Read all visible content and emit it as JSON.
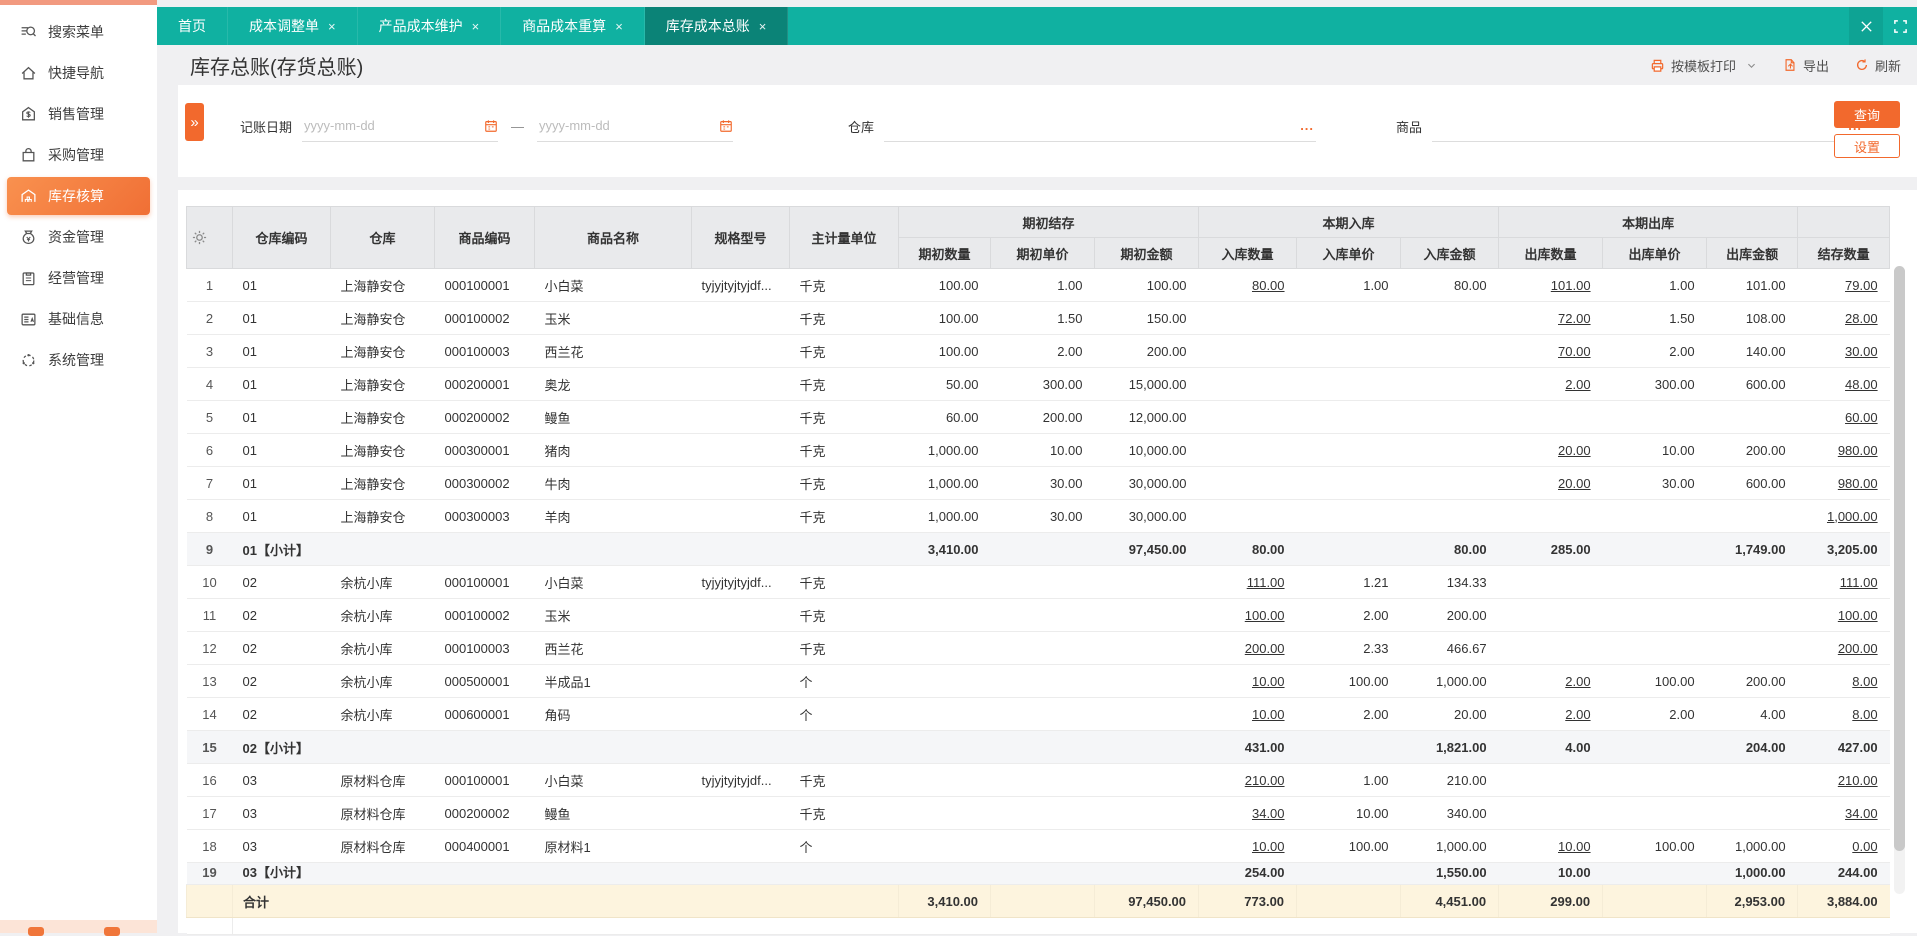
{
  "colors": {
    "teal": "#10b1a1",
    "teal_active_tab": "#0b8377",
    "accent_orange": "#f2692d",
    "sidebar_active_gradient_from": "#f9914f",
    "sidebar_active_gradient_to": "#f06f35",
    "total_row_bg": "#fdf4de",
    "header_bg": "#e9eaec"
  },
  "tabs": [
    {
      "label": "首页",
      "closable": false,
      "active": false
    },
    {
      "label": "成本调整单",
      "closable": true,
      "active": false
    },
    {
      "label": "产品成本维护",
      "closable": true,
      "active": false
    },
    {
      "label": "商品成本重算",
      "closable": true,
      "active": false
    },
    {
      "label": "库存成本总账",
      "closable": true,
      "active": true
    }
  ],
  "window_controls": [
    {
      "icon": "window-close-icon",
      "shade": true
    },
    {
      "icon": "window-restore-icon",
      "shade": false
    }
  ],
  "sidebar": {
    "items": [
      {
        "label": "搜索菜单",
        "icon": "search-menu-icon",
        "active": false
      },
      {
        "label": "快捷导航",
        "icon": "home-icon",
        "active": false
      },
      {
        "label": "销售管理",
        "icon": "sales-icon",
        "active": false
      },
      {
        "label": "采购管理",
        "icon": "procurement-icon",
        "active": false
      },
      {
        "label": "库存核算",
        "icon": "inventory-icon",
        "active": true
      },
      {
        "label": "资金管理",
        "icon": "funds-icon",
        "active": false
      },
      {
        "label": "经营管理",
        "icon": "operations-icon",
        "active": false
      },
      {
        "label": "基础信息",
        "icon": "base-info-icon",
        "active": false
      },
      {
        "label": "系统管理",
        "icon": "system-icon",
        "active": false
      }
    ]
  },
  "page": {
    "title": "库存总账(存货总账)"
  },
  "toolbar": {
    "print": "按模板打印",
    "export": "导出",
    "refresh": "刷新"
  },
  "filters": {
    "date_label": "记账日期",
    "date_placeholder": "yyyy-mm-dd",
    "separator": "—",
    "warehouse_label": "仓库",
    "product_label": "商品",
    "more": "...",
    "query": "查询",
    "settings": "设置"
  },
  "table": {
    "left_headers": [
      "仓库编码",
      "仓库",
      "商品编码",
      "商品名称",
      "规格型号",
      "主计量单位"
    ],
    "groups": [
      "期初结存",
      "本期入库",
      "本期出库"
    ],
    "numeric_headers": [
      "期初数量",
      "期初单价",
      "期初金额",
      "入库数量",
      "入库单价",
      "入库金额",
      "出库数量",
      "出库单价",
      "出库金额"
    ],
    "balance_header": "结存数量",
    "rows": [
      {
        "no": "1",
        "type": "data",
        "cells": [
          "01",
          "上海静安仓",
          "000100001",
          "小白菜",
          "tyjyjtyjtyjdf...",
          "千克"
        ],
        "values": [
          "100.00",
          "1.00",
          "100.00",
          "80.00",
          "1.00",
          "80.00",
          "101.00",
          "1.00",
          "101.00",
          "79.00"
        ],
        "links": [
          3,
          6,
          9
        ]
      },
      {
        "no": "2",
        "type": "data",
        "cells": [
          "01",
          "上海静安仓",
          "000100002",
          "玉米",
          "",
          "千克"
        ],
        "values": [
          "100.00",
          "1.50",
          "150.00",
          "",
          "",
          "",
          "72.00",
          "1.50",
          "108.00",
          "28.00"
        ],
        "links": [
          6,
          9
        ]
      },
      {
        "no": "3",
        "type": "data",
        "cells": [
          "01",
          "上海静安仓",
          "000100003",
          "西兰花",
          "",
          "千克"
        ],
        "values": [
          "100.00",
          "2.00",
          "200.00",
          "",
          "",
          "",
          "70.00",
          "2.00",
          "140.00",
          "30.00"
        ],
        "links": [
          6,
          9
        ]
      },
      {
        "no": "4",
        "type": "data",
        "cells": [
          "01",
          "上海静安仓",
          "000200001",
          "奥龙",
          "",
          "千克"
        ],
        "values": [
          "50.00",
          "300.00",
          "15,000.00",
          "",
          "",
          "",
          "2.00",
          "300.00",
          "600.00",
          "48.00"
        ],
        "links": [
          6,
          9
        ]
      },
      {
        "no": "5",
        "type": "data",
        "cells": [
          "01",
          "上海静安仓",
          "000200002",
          "鳗鱼",
          "",
          "千克"
        ],
        "values": [
          "60.00",
          "200.00",
          "12,000.00",
          "",
          "",
          "",
          "",
          "",
          "",
          "60.00"
        ],
        "links": [
          9
        ]
      },
      {
        "no": "6",
        "type": "data",
        "cells": [
          "01",
          "上海静安仓",
          "000300001",
          "猪肉",
          "",
          "千克"
        ],
        "values": [
          "1,000.00",
          "10.00",
          "10,000.00",
          "",
          "",
          "",
          "20.00",
          "10.00",
          "200.00",
          "980.00"
        ],
        "links": [
          6,
          9
        ]
      },
      {
        "no": "7",
        "type": "data",
        "cells": [
          "01",
          "上海静安仓",
          "000300002",
          "牛肉",
          "",
          "千克"
        ],
        "values": [
          "1,000.00",
          "30.00",
          "30,000.00",
          "",
          "",
          "",
          "20.00",
          "30.00",
          "600.00",
          "980.00"
        ],
        "links": [
          6,
          9
        ]
      },
      {
        "no": "8",
        "type": "data",
        "cells": [
          "01",
          "上海静安仓",
          "000300003",
          "羊肉",
          "",
          "千克"
        ],
        "values": [
          "1,000.00",
          "30.00",
          "30,000.00",
          "",
          "",
          "",
          "",
          "",
          "",
          "1,000.00"
        ],
        "links": [
          9
        ]
      },
      {
        "no": "9",
        "type": "subtotal",
        "label": "01【小计】",
        "values": [
          "3,410.00",
          "",
          "97,450.00",
          "80.00",
          "",
          "80.00",
          "285.00",
          "",
          "1,749.00",
          "3,205.00"
        ],
        "links": []
      },
      {
        "no": "10",
        "type": "data",
        "cells": [
          "02",
          "余杭小库",
          "000100001",
          "小白菜",
          "tyjyjtyjtyjdf...",
          "千克"
        ],
        "values": [
          "",
          "",
          "",
          "111.00",
          "1.21",
          "134.33",
          "",
          "",
          "",
          "111.00"
        ],
        "links": [
          3,
          9
        ]
      },
      {
        "no": "11",
        "type": "data",
        "cells": [
          "02",
          "余杭小库",
          "000100002",
          "玉米",
          "",
          "千克"
        ],
        "values": [
          "",
          "",
          "",
          "100.00",
          "2.00",
          "200.00",
          "",
          "",
          "",
          "100.00"
        ],
        "links": [
          3,
          9
        ]
      },
      {
        "no": "12",
        "type": "data",
        "cells": [
          "02",
          "余杭小库",
          "000100003",
          "西兰花",
          "",
          "千克"
        ],
        "values": [
          "",
          "",
          "",
          "200.00",
          "2.33",
          "466.67",
          "",
          "",
          "",
          "200.00"
        ],
        "links": [
          3,
          9
        ]
      },
      {
        "no": "13",
        "type": "data",
        "cells": [
          "02",
          "余杭小库",
          "000500001",
          "半成品1",
          "",
          "个"
        ],
        "values": [
          "",
          "",
          "",
          "10.00",
          "100.00",
          "1,000.00",
          "2.00",
          "100.00",
          "200.00",
          "8.00"
        ],
        "links": [
          3,
          6,
          9
        ]
      },
      {
        "no": "14",
        "type": "data",
        "cells": [
          "02",
          "余杭小库",
          "000600001",
          "角码",
          "",
          "个"
        ],
        "values": [
          "",
          "",
          "",
          "10.00",
          "2.00",
          "20.00",
          "2.00",
          "2.00",
          "4.00",
          "8.00"
        ],
        "links": [
          3,
          6,
          9
        ]
      },
      {
        "no": "15",
        "type": "subtotal",
        "label": "02【小计】",
        "values": [
          "",
          "",
          "",
          "431.00",
          "",
          "1,821.00",
          "4.00",
          "",
          "204.00",
          "427.00"
        ],
        "links": []
      },
      {
        "no": "16",
        "type": "data",
        "cells": [
          "03",
          "原材料仓库",
          "000100001",
          "小白菜",
          "tyjyjtyjtyjdf...",
          "千克"
        ],
        "values": [
          "",
          "",
          "",
          "210.00",
          "1.00",
          "210.00",
          "",
          "",
          "",
          "210.00"
        ],
        "links": [
          3,
          9
        ]
      },
      {
        "no": "17",
        "type": "data",
        "cells": [
          "03",
          "原材料仓库",
          "000200002",
          "鳗鱼",
          "",
          "千克"
        ],
        "values": [
          "",
          "",
          "",
          "34.00",
          "10.00",
          "340.00",
          "",
          "",
          "",
          "34.00"
        ],
        "links": [
          3,
          9
        ]
      },
      {
        "no": "18",
        "type": "data",
        "cells": [
          "03",
          "原材料仓库",
          "000400001",
          "原材料1",
          "",
          "个"
        ],
        "values": [
          "",
          "",
          "",
          "10.00",
          "100.00",
          "1,000.00",
          "10.00",
          "100.00",
          "1,000.00",
          "0.00"
        ],
        "links": [
          3,
          6,
          9
        ]
      },
      {
        "no": "19",
        "type": "subtotal",
        "label": "03【小计】",
        "clipped": true,
        "values": [
          "",
          "",
          "",
          "254.00",
          "",
          "1,550.00",
          "10.00",
          "",
          "1,000.00",
          "244.00"
        ],
        "links": []
      }
    ],
    "total": {
      "label": "合计",
      "values": [
        "3,410.00",
        "",
        "97,450.00",
        "773.00",
        "",
        "4,451.00",
        "299.00",
        "",
        "2,953.00",
        "3,884.00"
      ]
    }
  }
}
